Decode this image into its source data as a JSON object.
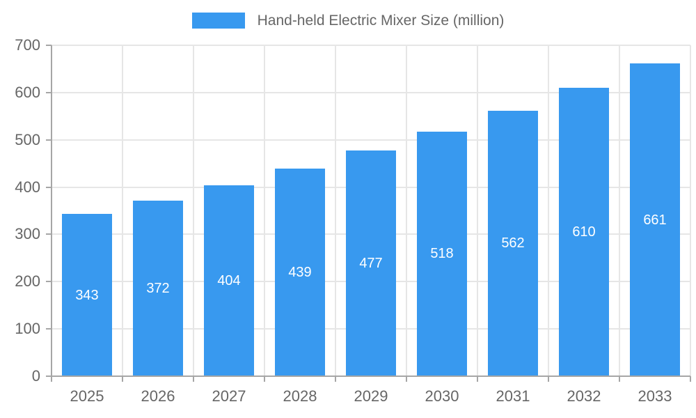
{
  "chart_data": {
    "type": "bar",
    "title": "Hand-held Electric Mixer Size (million)",
    "categories": [
      "2025",
      "2026",
      "2027",
      "2028",
      "2029",
      "2030",
      "2031",
      "2032",
      "2033"
    ],
    "values": [
      343,
      372,
      404,
      439,
      477,
      518,
      562,
      610,
      661
    ],
    "xlabel": "",
    "ylabel": "",
    "ylim": [
      0,
      700
    ],
    "yticks": [
      0,
      100,
      200,
      300,
      400,
      500,
      600,
      700
    ],
    "grid": true,
    "legend_position": "top-center",
    "value_label_position": "inside-center",
    "colors": {
      "bar": "#3899EF",
      "value_label": "#FFFFFF",
      "axis_text": "#666666",
      "grid_line": "#E6E6E6",
      "axis_line": "#A6A6A6",
      "background": "#FFFFFF"
    }
  }
}
